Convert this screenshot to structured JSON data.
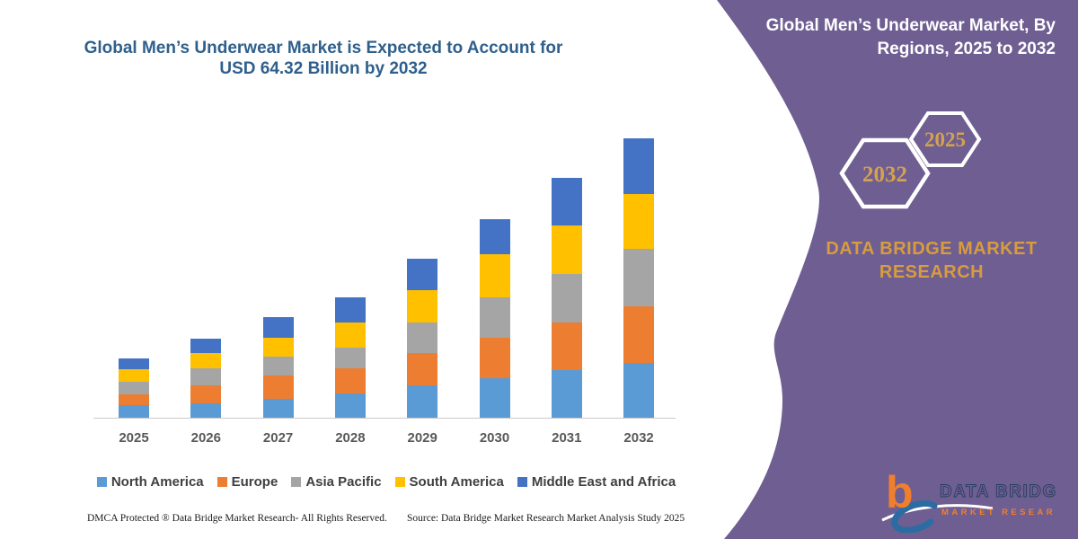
{
  "colors": {
    "panel_purple": "#6F5E92",
    "title_blue": "#2F5F8C",
    "axis_line": "#C9C9C9",
    "tick_label": "#595959",
    "legend_text": "#3F3F3F",
    "gold_year": "#D4A24E",
    "gold_brand": "#D79C3F",
    "logo_orange": "#F07F2D",
    "logo_blue": "#2B6CA3",
    "logo_outline": "#253E5C"
  },
  "main": {
    "title_line1": "Global Men’s Underwear Market is Expected to Account for",
    "title_line2": "USD 64.32 Billion by 2032"
  },
  "chart_data": {
    "type": "bar",
    "stacked": true,
    "title": "Global Men’s Underwear Market is Expected to Account for USD 64.32 Billion by 2032",
    "unit": "USD Billion",
    "categories": [
      "2025",
      "2026",
      "2027",
      "2028",
      "2029",
      "2030",
      "2031",
      "2032"
    ],
    "series": [
      {
        "name": "North America",
        "color": "#5B9BD5",
        "values": [
          2.9,
          3.3,
          4.3,
          5.6,
          7.4,
          9.0,
          11.0,
          12.6
        ]
      },
      {
        "name": "Europe",
        "color": "#ED7D31",
        "values": [
          2.5,
          4.1,
          5.4,
          5.8,
          7.4,
          9.3,
          11.0,
          13.1
        ]
      },
      {
        "name": "Asia Pacific",
        "color": "#A5A5A5",
        "values": [
          2.9,
          3.9,
          4.3,
          4.8,
          7.2,
          9.3,
          11.0,
          13.2
        ]
      },
      {
        "name": "South America",
        "color": "#FFC000",
        "values": [
          2.9,
          3.5,
          4.3,
          5.8,
          7.4,
          10.1,
          11.2,
          12.6
        ]
      },
      {
        "name": "Middle East and Africa",
        "color": "#4472C4",
        "values": [
          2.5,
          3.4,
          4.8,
          5.6,
          7.2,
          8.0,
          11.0,
          12.8
        ]
      }
    ],
    "totals_estimated": [
      13.7,
      18.2,
      23.1,
      27.6,
      36.6,
      45.7,
      55.2,
      64.32
    ],
    "xlabel": "",
    "ylabel": "",
    "y_axis_visible": false,
    "grid": false,
    "legend_position": "bottom"
  },
  "panel": {
    "title_line1": "Global Men’s Underwear Market, By",
    "title_line2": "Regions, 2025 to 2032",
    "hexagon_back_year": "2032",
    "hexagon_front_year": "2025",
    "brand_text": "DATA BRIDGE MARKET RESEARCH"
  },
  "logo": {
    "wordmark": "DATA BRIDGE",
    "tagline": "MARKET RESEARCH"
  },
  "footer": {
    "dmca": "DMCA Protected ® Data Bridge Market Research-  All Rights Reserved.",
    "source": "Source: Data Bridge Market Research  Market Analysis Study 2025"
  }
}
